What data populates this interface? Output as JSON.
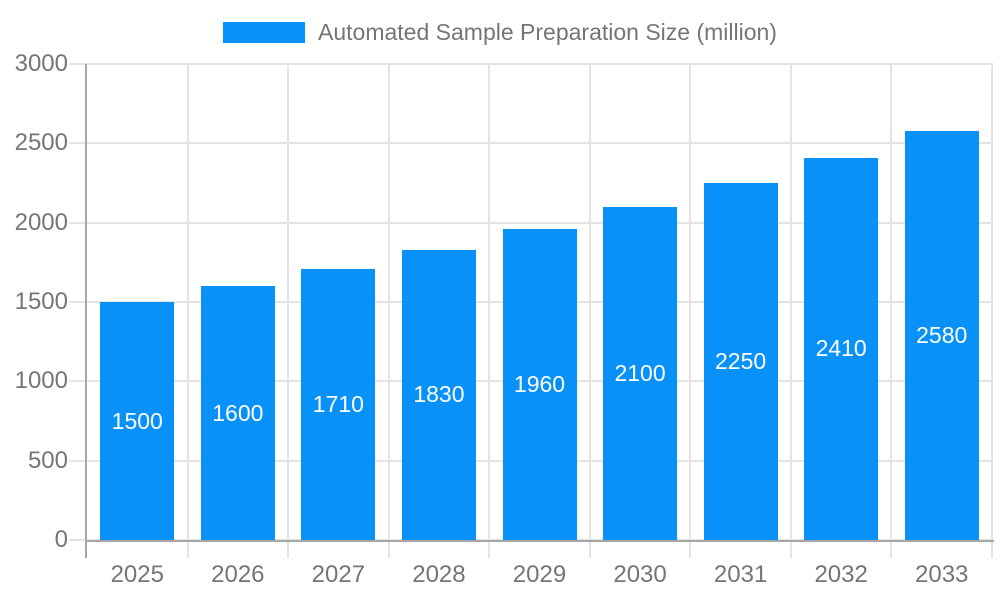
{
  "legend": {
    "label": "Automated Sample Preparation Size (million)"
  },
  "colors": {
    "bar": "#0991fa",
    "axis": "#a6a6a6",
    "grid": "#e4e4e4",
    "tick_text": "#757575",
    "value_label_text": "#ffffff",
    "background": "#ffffff"
  },
  "chart_data": {
    "type": "bar",
    "title": "Automated Sample Preparation Size (million)",
    "series": [
      {
        "name": "Automated Sample Preparation Size (million)",
        "values": [
          1500,
          1600,
          1710,
          1830,
          1960,
          2100,
          2250,
          2410,
          2580
        ]
      }
    ],
    "categories": [
      "2025",
      "2026",
      "2027",
      "2028",
      "2029",
      "2030",
      "2031",
      "2032",
      "2033"
    ],
    "xlabel": "",
    "ylabel": "",
    "ylim": [
      0,
      3000
    ],
    "yticks": [
      0,
      500,
      1000,
      1500,
      2000,
      2500,
      3000
    ],
    "grid": true,
    "legend_position": "top-center",
    "value_labels": "inside-center-white"
  }
}
